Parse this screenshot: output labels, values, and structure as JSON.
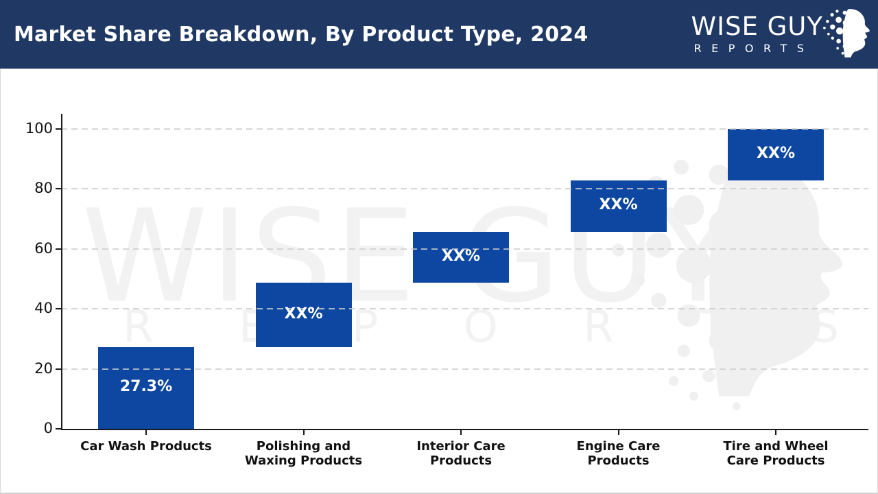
{
  "header": {
    "title": "Market Share Breakdown, By Product Type, 2024",
    "brand": {
      "name_top": "WISE GUY",
      "name_bottom": "REPORTS"
    }
  },
  "watermark": {
    "line1": "WISE GUY",
    "line2": "R E P O R T S"
  },
  "chart_data": {
    "type": "bar",
    "subtype": "waterfall",
    "title": "Market Share Breakdown, By Product Type, 2024",
    "categories": [
      "Car Wash Products",
      "Polishing and Waxing Products",
      "Interior Care Products",
      "Engine Care Products",
      "Tire and Wheel Care Products"
    ],
    "bars": [
      {
        "category_lines": [
          "Car Wash Products"
        ],
        "value_label": "27.3%",
        "start": 0,
        "end": 27.3
      },
      {
        "category_lines": [
          "Polishing and",
          "Waxing Products"
        ],
        "value_label": "XX%",
        "start": 27.3,
        "end": 48.6
      },
      {
        "category_lines": [
          "Interior Care",
          "Products"
        ],
        "value_label": "XX%",
        "start": 48.6,
        "end": 65.7
      },
      {
        "category_lines": [
          "Engine Care",
          "Products"
        ],
        "value_label": "XX%",
        "start": 65.7,
        "end": 82.8
      },
      {
        "category_lines": [
          "Tire and Wheel",
          "Care Products"
        ],
        "value_label": "XX%",
        "start": 82.8,
        "end": 100
      }
    ],
    "yticks": [
      0,
      20,
      40,
      60,
      80,
      100
    ],
    "ylim": [
      0,
      105
    ],
    "xlabel": "",
    "ylabel": "",
    "grid": "horizontal-dashed",
    "legend": "none",
    "colors": {
      "bar": "#0d47a1",
      "bar_label": "#ffffff",
      "axis": "#1a1a1a",
      "gridline": "#d9d9d9",
      "header_bg": "#1f3864",
      "watermark": "#f2f2f2"
    }
  }
}
